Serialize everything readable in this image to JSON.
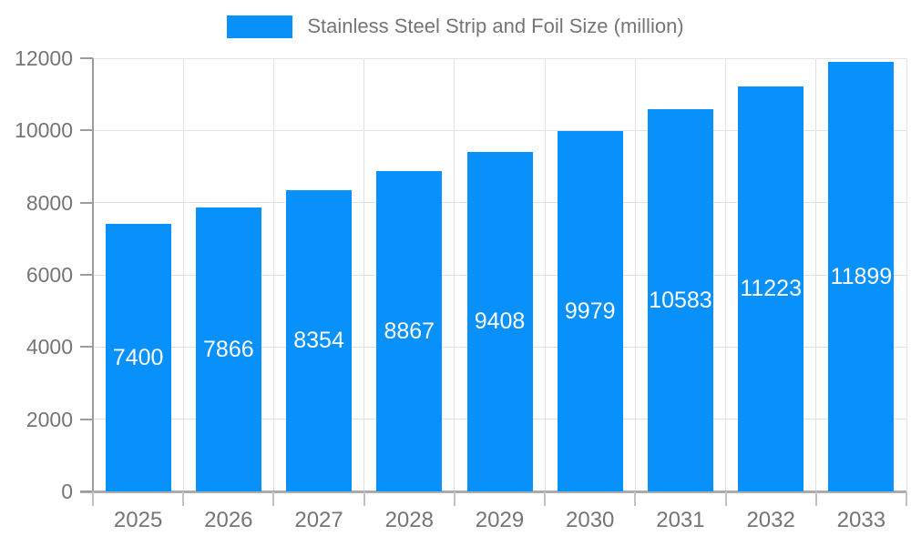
{
  "chart_data": {
    "type": "bar",
    "title": "Stainless Steel Strip and Foil Size (million)",
    "categories": [
      "2025",
      "2026",
      "2027",
      "2028",
      "2029",
      "2030",
      "2031",
      "2032",
      "2033"
    ],
    "values": [
      7400,
      7866,
      8354,
      8867,
      9408,
      9979,
      10583,
      11223,
      11899
    ],
    "series": [
      {
        "name": "Stainless Steel Strip and Foil Size (million)",
        "values": [
          7400,
          7866,
          8354,
          8867,
          9408,
          9979,
          10583,
          11223,
          11899
        ]
      }
    ],
    "xlabel": "",
    "ylabel": "",
    "ylim": [
      0,
      12000
    ],
    "ytick_step": 2000,
    "ytick_labels": [
      "0",
      "2000",
      "4000",
      "6000",
      "8000",
      "10000",
      "12000"
    ],
    "grid": true,
    "legend_position": "top-center",
    "value_labels": "inside-center",
    "colors": {
      "bar": "#0890FB",
      "value_label": "#FFFFFF",
      "axis_text": "#757575",
      "gridline": "#E2E2E2",
      "axis_line": "#ABABAB",
      "axis_strong": "#9C9C9C",
      "x_tick": "#C2C2C2",
      "background": "#FFFFFF"
    }
  }
}
